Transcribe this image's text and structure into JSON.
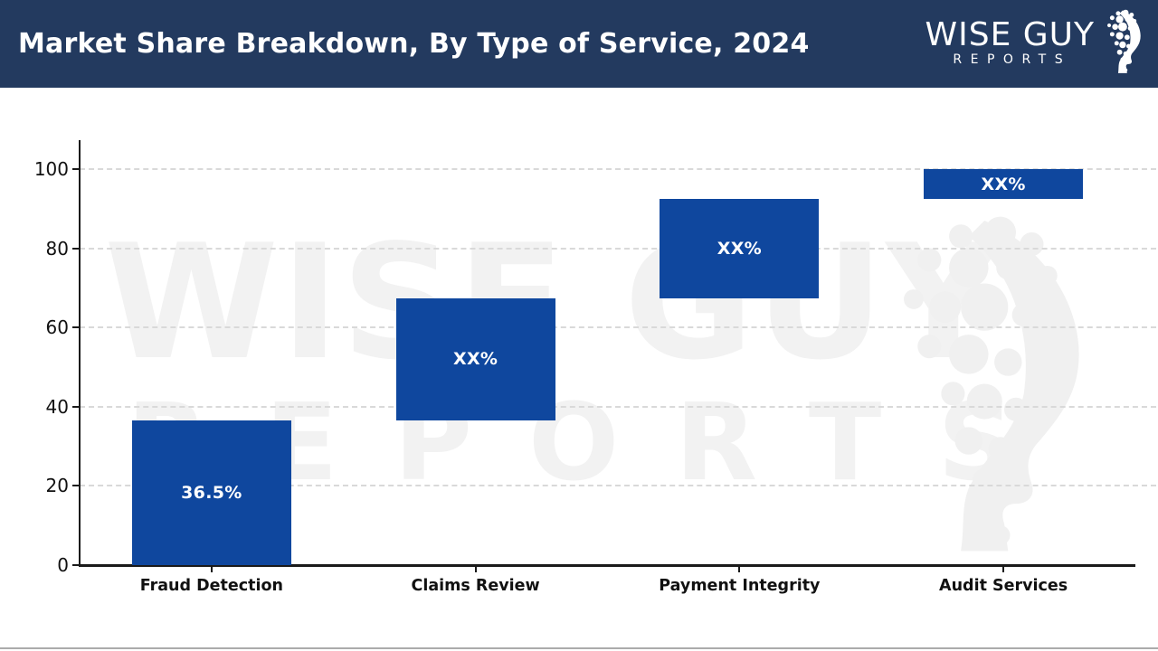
{
  "header": {
    "title": "Market Share Breakdown, By Type of Service, 2024",
    "logo": {
      "wordmark": "WISE GUY",
      "tagline": "REPORTS"
    }
  },
  "watermark": {
    "line1": "WISE GUY",
    "line2": "REPORTS"
  },
  "chart_data": {
    "type": "bar",
    "subtype": "waterfall",
    "title": "Market Share Breakdown, By Type of Service, 2024",
    "xlabel": "",
    "ylabel": "",
    "categories": [
      "Fraud Detection",
      "Claims Review",
      "Payment Integrity",
      "Audit Services"
    ],
    "segments": [
      {
        "category": "Fraud Detection",
        "start": 0,
        "end": 36.5,
        "label": "36.5%"
      },
      {
        "category": "Claims Review",
        "start": 36.5,
        "end": 67.5,
        "label": "XX%"
      },
      {
        "category": "Payment Integrity",
        "start": 67.5,
        "end": 92.5,
        "label": "XX%"
      },
      {
        "category": "Audit Services",
        "start": 92.5,
        "end": 100,
        "label": "XX%"
      }
    ],
    "yticks": [
      0,
      20,
      40,
      60,
      80,
      100
    ],
    "ylim": [
      0,
      107.4
    ],
    "grid": {
      "axis": "y",
      "style": "dashed"
    },
    "legend": "none",
    "bar_color": "#0F479E",
    "bar_label_color": "#FFFFFF"
  },
  "theme": {
    "header_bg": "#233A5F",
    "accent_blue": "#0F479E",
    "grid_color": "#D9D9D9",
    "axis_color": "#1A1A1A",
    "watermark_color": "rgba(0,0,0,0.05)"
  }
}
